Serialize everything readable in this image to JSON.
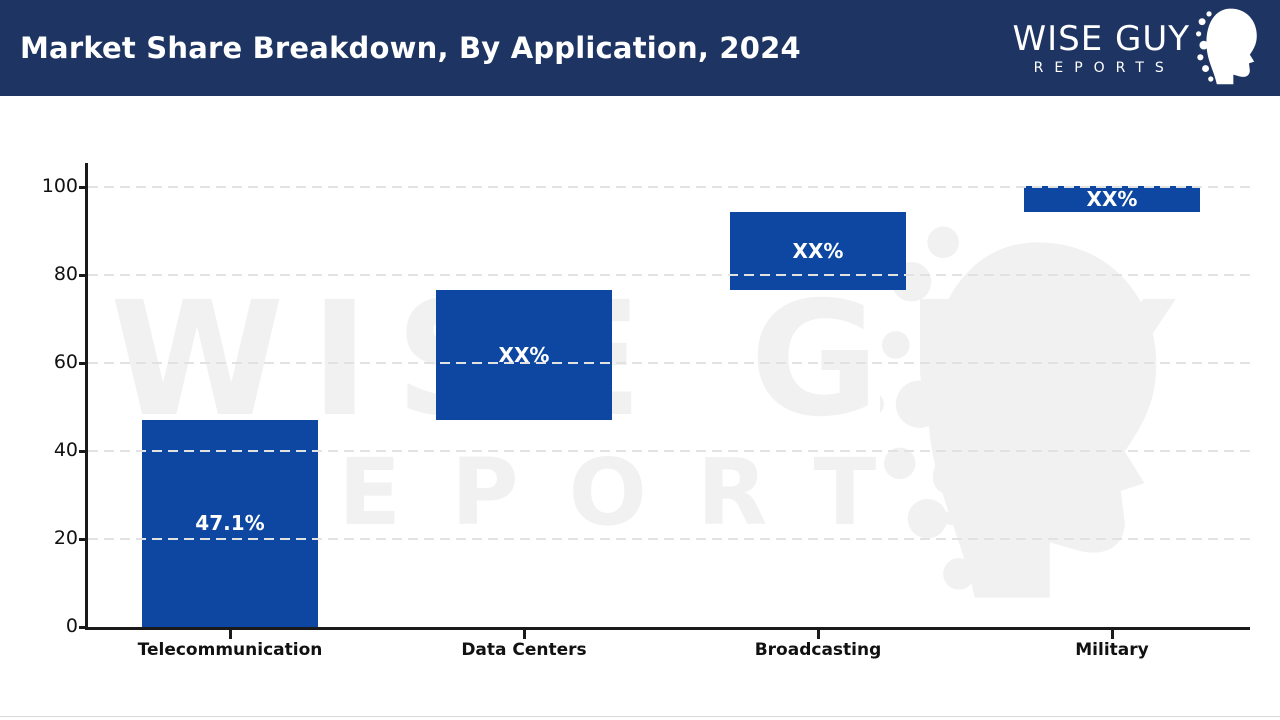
{
  "header": {
    "title": "Market Share Breakdown, By Application, 2024",
    "bg_color": "#1e3563"
  },
  "brand": {
    "name": "WISE GUY",
    "sub": "REPORTS"
  },
  "watermark": {
    "line1": "WISE GUY",
    "line2": "REPORTS"
  },
  "chart_data": {
    "type": "bar",
    "subtype": "waterfall",
    "title": "Market Share Breakdown, By Application, 2024",
    "categories": [
      "Telecommunication",
      "Data Centers",
      "Broadcasting",
      "Military"
    ],
    "bars": [
      {
        "category": "Telecommunication",
        "start": 0,
        "end": 47.1,
        "label": "47.1%"
      },
      {
        "category": "Data Centers",
        "start": 47.1,
        "end": 76.6,
        "label": "XX%"
      },
      {
        "category": "Broadcasting",
        "start": 76.6,
        "end": 94.3,
        "label": "XX%"
      },
      {
        "category": "Military",
        "start": 94.3,
        "end": 100.2,
        "label": "XX%"
      }
    ],
    "yticks": [
      0,
      20,
      40,
      60,
      80,
      100
    ],
    "ylim": [
      0,
      105
    ],
    "xlabel": "",
    "ylabel": "",
    "grid": "horizontal-dashed",
    "grid_above_bars": true,
    "bar_color": "#0d47a1",
    "bar_label_color": "#ffffff",
    "axis_color": "#1a1a1a"
  }
}
